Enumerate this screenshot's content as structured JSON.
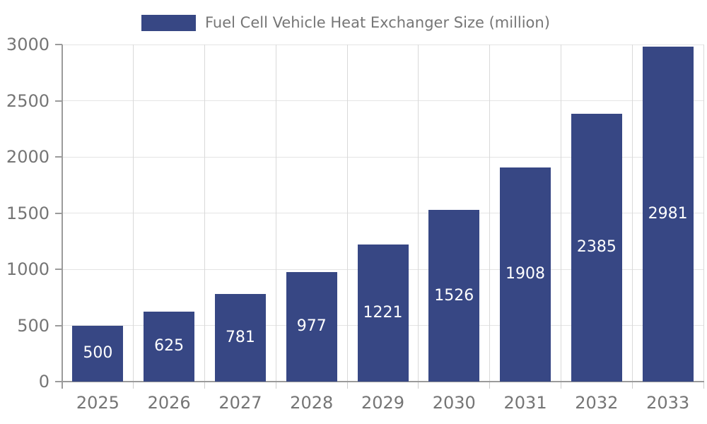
{
  "chart_data": {
    "type": "bar",
    "categories": [
      "2025",
      "2026",
      "2027",
      "2028",
      "2029",
      "2030",
      "2031",
      "2032",
      "2033"
    ],
    "series": [
      {
        "name": "Fuel Cell Vehicle Heat Exchanger Size (million)",
        "values": [
          500,
          625,
          781,
          977,
          1221,
          1526,
          1908,
          2385,
          2981
        ]
      }
    ],
    "xlabel": "",
    "ylabel": "",
    "ylim": [
      0,
      3000
    ],
    "yticks": [
      0,
      500,
      1000,
      1500,
      2000,
      2500,
      3000
    ],
    "legend_position": "top",
    "grid": true,
    "value_labels": "inside-center",
    "colors": {
      "bar": "#374784",
      "bar_label": "#ffffff",
      "axis_text": "#757575",
      "legend_text": "#767676",
      "gridline_h": "#e4e4e4",
      "gridline_v": "#d9d9d9",
      "axis_line": "#9b9b9b",
      "background": "#ffffff"
    }
  }
}
